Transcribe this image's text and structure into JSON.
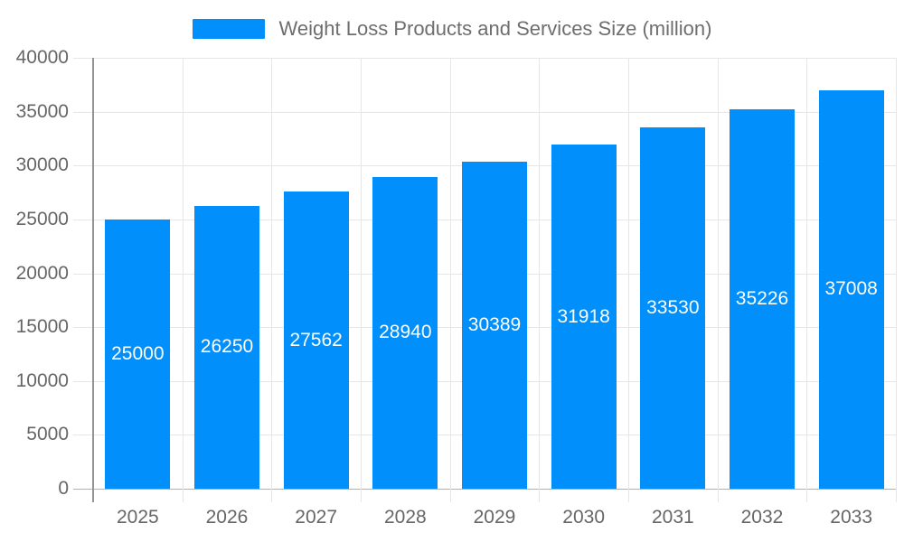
{
  "chart_data": {
    "type": "bar",
    "title": "Weight Loss Products and Services Size (million)",
    "categories": [
      "2025",
      "2026",
      "2027",
      "2028",
      "2029",
      "2030",
      "2031",
      "2032",
      "2033"
    ],
    "series": [
      {
        "name": "Weight Loss Products and Services Size (million)",
        "values": [
          25000,
          26250,
          27562,
          28940,
          30389,
          31918,
          33530,
          35226,
          37008
        ]
      }
    ],
    "data_labels": [
      "25000",
      "26250",
      "27562",
      "28940",
      "30389",
      "31918",
      "33530",
      "35226",
      "37008"
    ],
    "xlabel": "",
    "ylabel": "",
    "ylim": [
      0,
      40000
    ],
    "ytick_step": 5000,
    "y_tick_labels": [
      "0",
      "5000",
      "10000",
      "15000",
      "20000",
      "25000",
      "30000",
      "35000",
      "40000"
    ],
    "grid": "on",
    "legend_position": "top",
    "colors": {
      "bar": "#008FFB",
      "grid_line": "#e6e6e6",
      "x_axis_line": "#b0b0b0",
      "y_axis_line": "#949494",
      "tick_text": "#666666",
      "legend_text": "#6e6e6e",
      "data_label_text": "#ffffff",
      "background": "#ffffff"
    }
  }
}
